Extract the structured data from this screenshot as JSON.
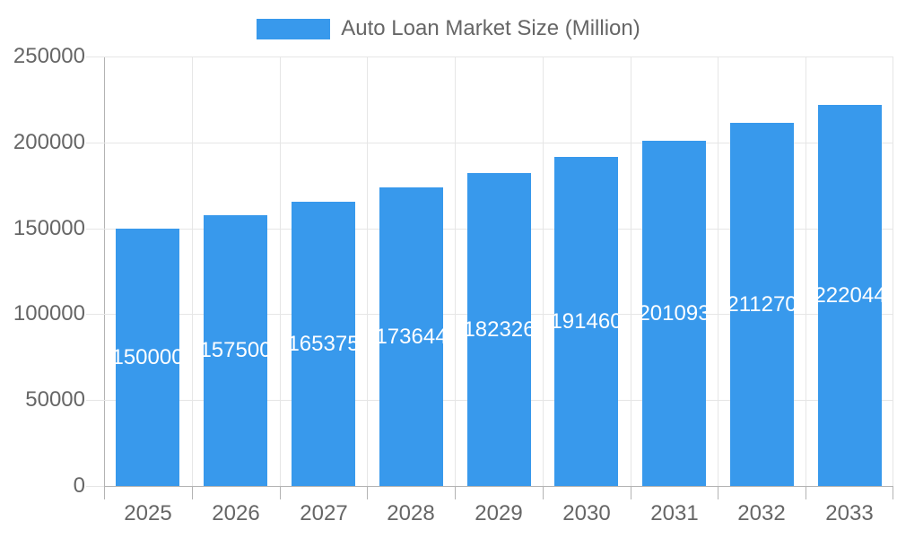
{
  "legend": {
    "label": "Auto Loan Market Size (Million)"
  },
  "chart_data": {
    "type": "bar",
    "title": "Auto Loan Market Size (Million)",
    "series_name": "Auto Loan Market Size (Million)",
    "categories": [
      "2025",
      "2026",
      "2027",
      "2028",
      "2029",
      "2030",
      "2031",
      "2032",
      "2033"
    ],
    "values": [
      150000,
      157500,
      165375,
      173644,
      182326,
      191460,
      201093,
      211270,
      222044
    ],
    "bar_labels": [
      "150000",
      "157500",
      "165375",
      "173644",
      "182326",
      "191460",
      "201093",
      "211270",
      "222044"
    ],
    "xlabel": "",
    "ylabel": "",
    "ylim": [
      0,
      250000
    ],
    "yticks": [
      0,
      50000,
      100000,
      150000,
      200000,
      250000
    ],
    "grid": true,
    "legend_position": "top",
    "bar_color": "#3899ec",
    "bar_label_color": "#ffffff",
    "axis_text_color": "#666666",
    "gridline_color": "#e6e6e6",
    "axis_line_color": "#b3b3b3",
    "background_color": "#ffffff"
  }
}
